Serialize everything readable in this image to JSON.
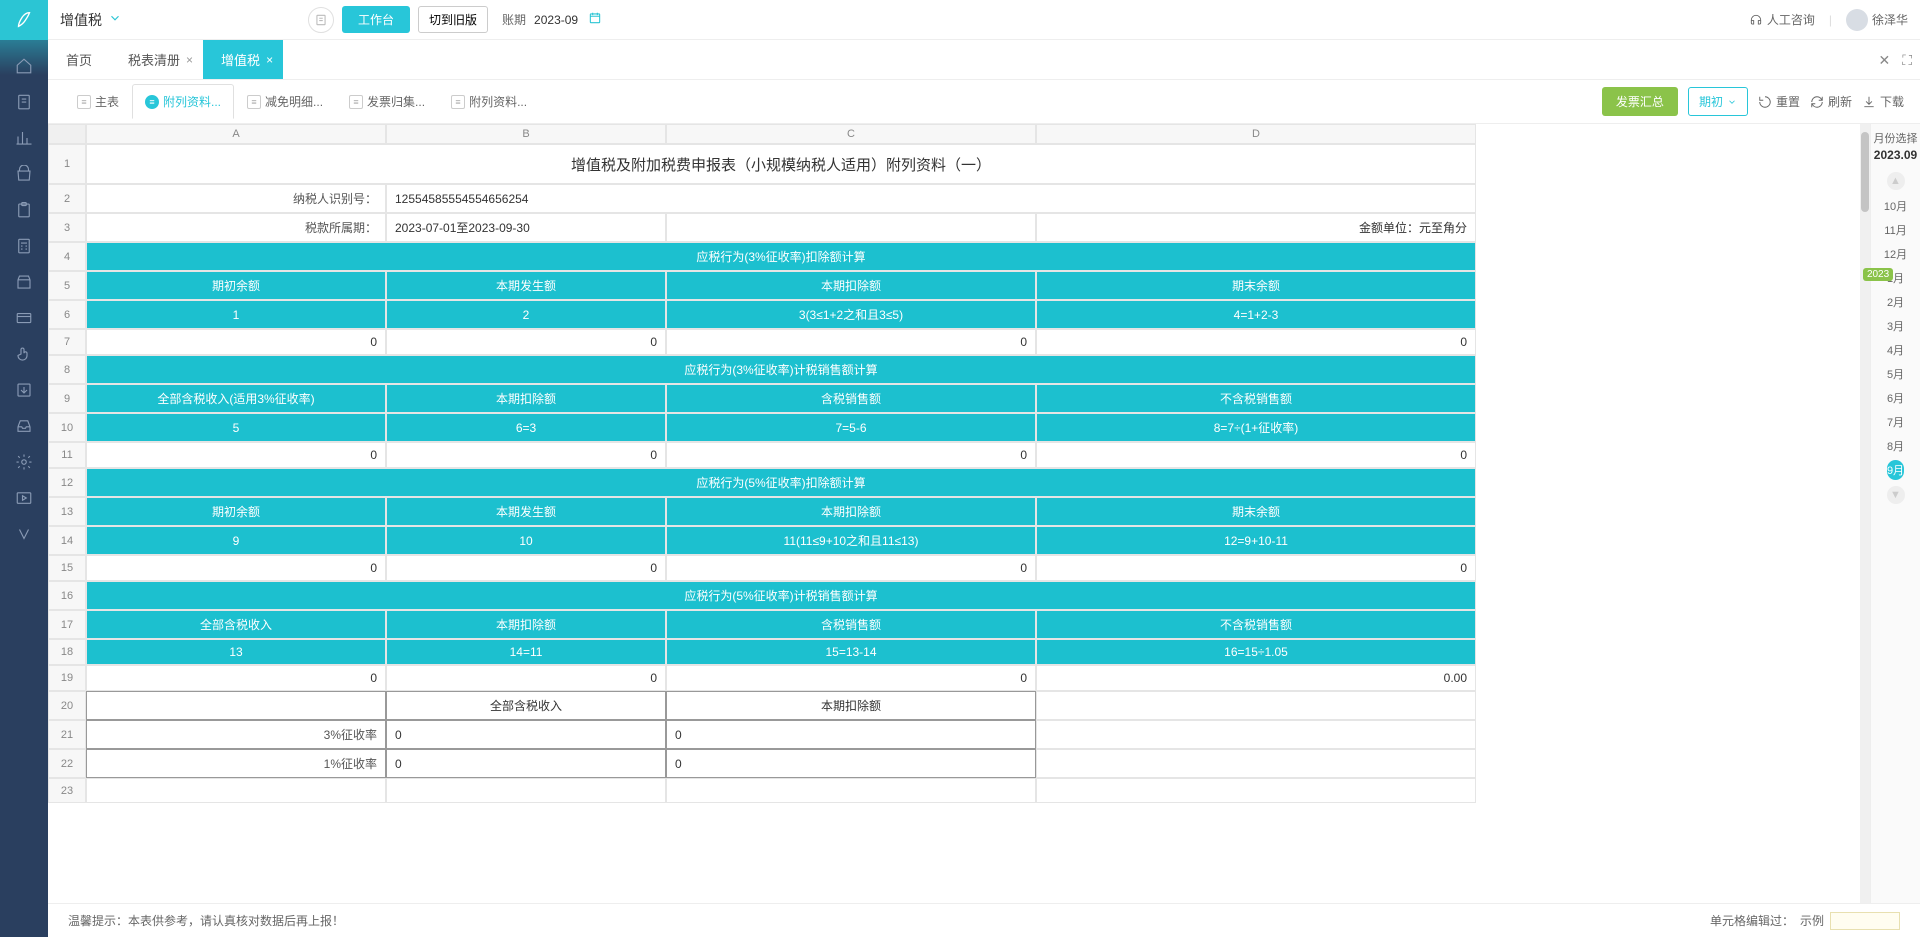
{
  "topbar": {
    "app_title": "增值税",
    "workspace_btn": "工作台",
    "switch_old_btn": "切到旧版",
    "period_label": "账期",
    "period_value": "2023-09",
    "consult_label": "人工咨询",
    "username": "徐泽华"
  },
  "tabs": {
    "home": "首页",
    "tax_list": "税表清册",
    "vat": "增值税"
  },
  "subtabs": {
    "main": "主表",
    "attach": "附列资料...",
    "exempt": "减免明细...",
    "invoice": "发票归集...",
    "attach2": "附列资料..."
  },
  "toolbar": {
    "invoice_summary": "发票汇总",
    "period_start": "期初",
    "reset": "重置",
    "refresh": "刷新",
    "download": "下载"
  },
  "month_panel": {
    "title": "月份选择",
    "current": "2023.09",
    "year_badge": "2023",
    "months": [
      "10月",
      "11月",
      "12月",
      "1月",
      "2月",
      "3月",
      "4月",
      "5月",
      "6月",
      "7月",
      "8月",
      "9月"
    ],
    "active_index": 11
  },
  "sheet": {
    "columns": [
      "A",
      "B",
      "C",
      "D"
    ],
    "title": "增值税及附加税费申报表（小规模纳税人适用）附列资料（一）",
    "taxpayer_id_label": "纳税人识别号：",
    "taxpayer_id": "12554585554554656254",
    "tax_period_label": "税款所属期：",
    "tax_period": "2023-07-01至2023-09-30",
    "unit_label": "金额单位：元至角分",
    "section4": "应税行为(3%征收率)扣除额计算",
    "r5": {
      "a": "期初余额",
      "b": "本期发生额",
      "c": "本期扣除额",
      "d": "期末余额"
    },
    "r6": {
      "a": "1",
      "b": "2",
      "c": "3(3≤1+2之和且3≤5)",
      "d": "4=1+2-3"
    },
    "r7": {
      "a": "0",
      "b": "0",
      "c": "0",
      "d": "0"
    },
    "section8": "应税行为(3%征收率)计税销售额计算",
    "r9": {
      "a": "全部含税收入(适用3%征收率)",
      "b": "本期扣除额",
      "c": "含税销售额",
      "d": "不含税销售额"
    },
    "r10": {
      "a": "5",
      "b": "6=3",
      "c": "7=5-6",
      "d": "8=7÷(1+征收率)"
    },
    "r11": {
      "a": "0",
      "b": "0",
      "c": "0",
      "d": "0"
    },
    "section12": "应税行为(5%征收率)扣除额计算",
    "r13": {
      "a": "期初余额",
      "b": "本期发生额",
      "c": "本期扣除额",
      "d": "期末余额"
    },
    "r14": {
      "a": "9",
      "b": "10",
      "c": "11(11≤9+10之和且11≤13)",
      "d": "12=9+10-11"
    },
    "r15": {
      "a": "0",
      "b": "0",
      "c": "0",
      "d": "0"
    },
    "section16": "应税行为(5%征收率)计税销售额计算",
    "r17": {
      "a": "全部含税收入",
      "b": "本期扣除额",
      "c": "含税销售额",
      "d": "不含税销售额"
    },
    "r18": {
      "a": "13",
      "b": "14=11",
      "c": "15=13-14",
      "d": "16=15÷1.05"
    },
    "r19": {
      "a": "0",
      "b": "0",
      "c": "0",
      "d": "0.00"
    },
    "r20": {
      "b": "全部含税收入",
      "c": "本期扣除额"
    },
    "r21": {
      "a": "3%征收率",
      "b": "0",
      "c": "0"
    },
    "r22": {
      "a": "1%征收率",
      "b": "0",
      "c": "0"
    }
  },
  "footer": {
    "tip": "温馨提示：本表供参考，请认真核对数据后再上报！",
    "cell_edit_label": "单元格编辑过：",
    "sample_label": "示例"
  }
}
